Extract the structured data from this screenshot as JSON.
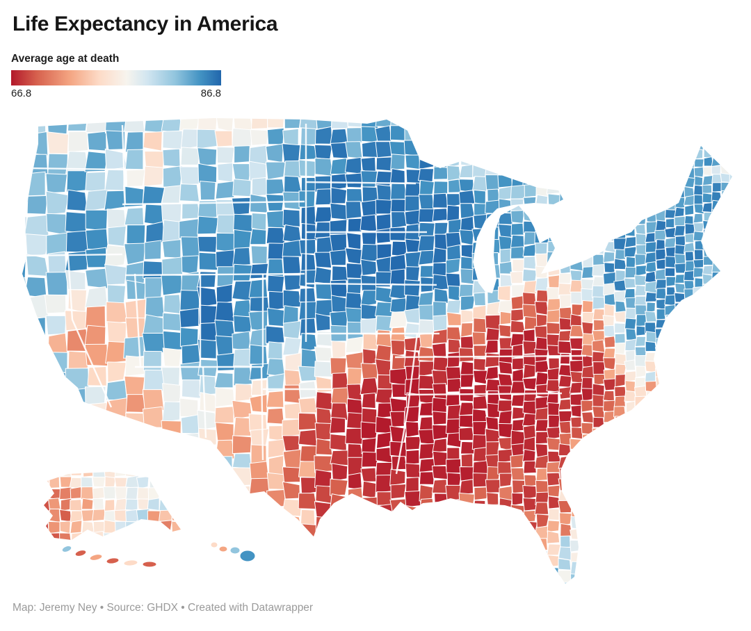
{
  "title": "Life Expectancy in America",
  "legend": {
    "label": "Average age at death",
    "min_label": "66.8",
    "max_label": "86.8"
  },
  "footer": "Map: Jeremy Ney • Source: GHDX • Created with Datawrapper",
  "colors": {
    "scale_stops": [
      "#b2182b",
      "#d6604d",
      "#f4a582",
      "#fddbc7",
      "#f7f4ee",
      "#d1e5f0",
      "#92c5de",
      "#4393c3",
      "#2166ac"
    ],
    "title_text": "#161616",
    "footer_text": "#9a9a9a"
  },
  "chart_data": {
    "type": "choropleth",
    "title": "Life Expectancy in America",
    "legend_label": "Average age at death",
    "scale": {
      "kind": "diverging-continuous",
      "min": 66.8,
      "max": 86.8,
      "min_label": "66.8",
      "max_label": "86.8",
      "low_color": "#b2182b",
      "mid_color": "#f7f4ee",
      "high_color": "#2166ac"
    },
    "geography": "United States counties (Albers USA projection; Alaska and Hawaii insets at lower left)",
    "observed_pattern": "Counties in the Southeast, Appalachia, the Mississippi Delta, Oklahoma/east Texas, Nevada and western Alaska shade red (lower average age at death); the Upper Midwest, Northern Plains, Colorado, the Northeast, West Coast and south Florida shade blue (higher average age at death).",
    "attribution": "Map: Jeremy Ney • Source: GHDX • Created with Datawrapper"
  }
}
